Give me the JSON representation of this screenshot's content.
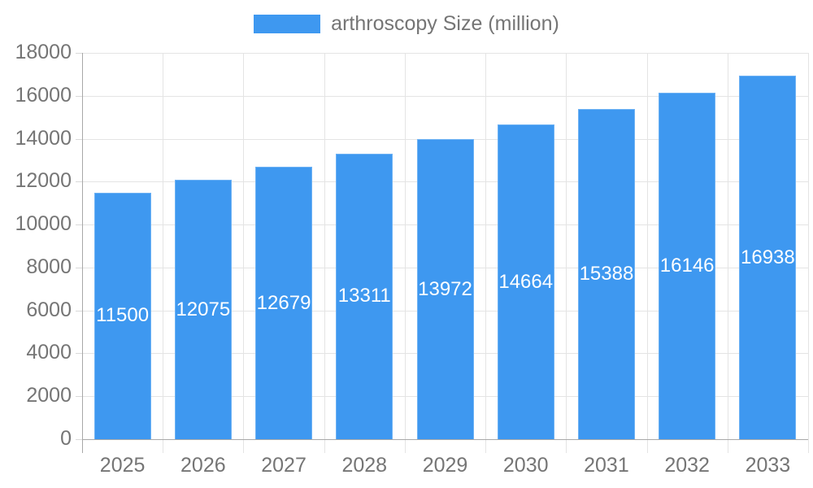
{
  "legend": {
    "label": "arthroscopy Size (million)"
  },
  "chart_data": {
    "type": "bar",
    "title": "",
    "categories": [
      "2025",
      "2026",
      "2027",
      "2028",
      "2029",
      "2030",
      "2031",
      "2032",
      "2033"
    ],
    "series": [
      {
        "name": "arthroscopy Size (million)",
        "values": [
          11500,
          12075,
          12679,
          13311,
          13972,
          14664,
          15388,
          16146,
          16938
        ]
      }
    ],
    "xlabel": "",
    "ylabel": "",
    "ylim": [
      0,
      18000
    ],
    "ytick_step": 2000,
    "yticks": [
      0,
      2000,
      4000,
      6000,
      8000,
      10000,
      12000,
      14000,
      16000,
      18000
    ],
    "grid": true,
    "legend_position": "top",
    "value_label_position": "inside-center"
  },
  "colors": {
    "bar": "#3e98f0",
    "grid": "#e4e4e4",
    "axis": "#a8a8a8",
    "tick": "#d9d9d9",
    "label_text": "#757575",
    "value_label_text": "#ffffff",
    "background": "#ffffff"
  }
}
